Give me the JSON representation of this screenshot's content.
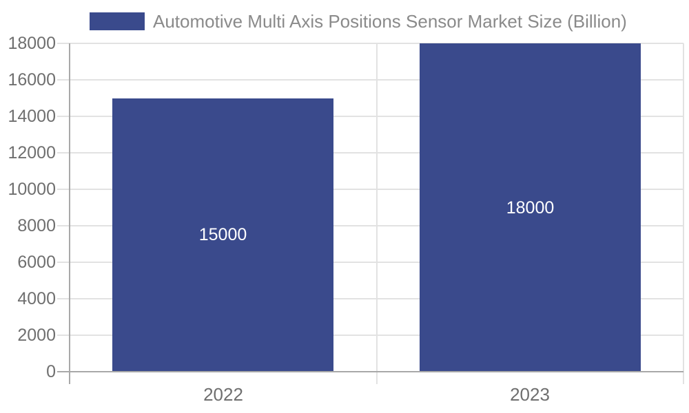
{
  "chart_data": {
    "type": "bar",
    "title": "Automotive Multi Axis Positions Sensor Market Size (Billion)",
    "categories": [
      "2022",
      "2023"
    ],
    "values": [
      15000,
      18000
    ],
    "series": [
      {
        "name": "Automotive Multi Axis Positions Sensor Market Size (Billion)",
        "values": [
          15000,
          18000
        ]
      }
    ],
    "value_labels": [
      "15000",
      "18000"
    ],
    "value_label_position": "inside-center",
    "xlabel": "",
    "ylabel": "",
    "ylim": [
      0,
      18000
    ],
    "ytick_step": 2000,
    "yticks": [
      0,
      2000,
      4000,
      6000,
      8000,
      10000,
      12000,
      14000,
      16000,
      18000
    ],
    "grid": true,
    "legend_position": "top-center",
    "colors": {
      "bar_fill": "#3a4a8c",
      "axis_line": "#a8a8a8",
      "gridline": "#e2e2e2",
      "tick_label_text": "#6f6f6f",
      "legend_text": "#8a8a8a",
      "value_label_text": "#ffffff",
      "background": "#ffffff"
    }
  }
}
